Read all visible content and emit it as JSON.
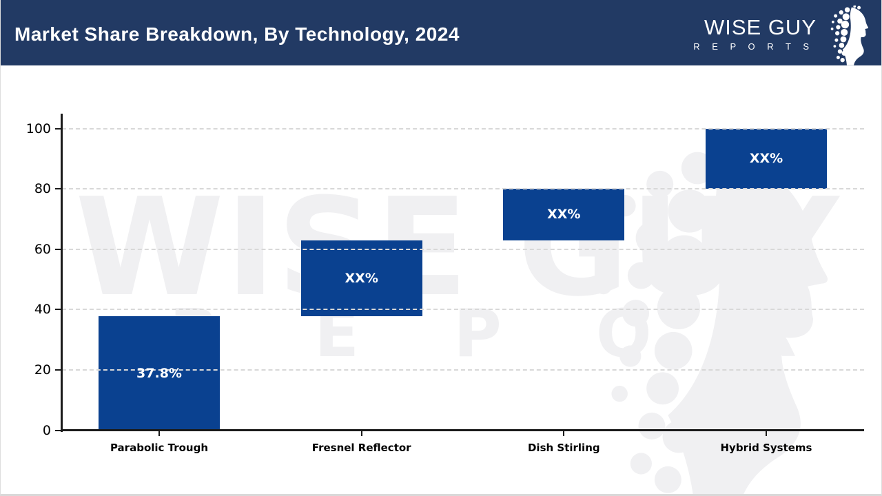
{
  "header": {
    "title": "Market Share Breakdown, By Technology, 2024",
    "bg_color": "#223A64",
    "logo": {
      "line1": "WISE GUY",
      "line2": "R E P O R T S",
      "face_icon": "dotted-head-icon"
    }
  },
  "watermark": {
    "line1": "WISE GUY",
    "line2": "R E P O R T S"
  },
  "chart_data": {
    "type": "bar",
    "subtype": "waterfall",
    "title": "Market Share Breakdown, By Technology, 2024",
    "categories": [
      "Parabolic Trough",
      "Fresnel Reflector",
      "Dish Stirling",
      "Hybrid Systems"
    ],
    "series": [
      {
        "name": "Market Share %",
        "segment_start": [
          0,
          37.8,
          63,
          80
        ],
        "segment_end": [
          37.8,
          63,
          80,
          100
        ]
      }
    ],
    "bar_labels": [
      "37.8%",
      "XX%",
      "XX%",
      "XX%"
    ],
    "yticks": [
      0,
      20,
      40,
      60,
      80,
      100
    ],
    "ylim": [
      0,
      105
    ],
    "xlabel": "",
    "ylabel": "",
    "grid": "horizontal dashed",
    "legend": "none",
    "bar_color": "#0A4190",
    "bar_label_color": "#ffffff",
    "grid_color": "#d8d8d8",
    "axis_color": "#1a1a1a"
  }
}
